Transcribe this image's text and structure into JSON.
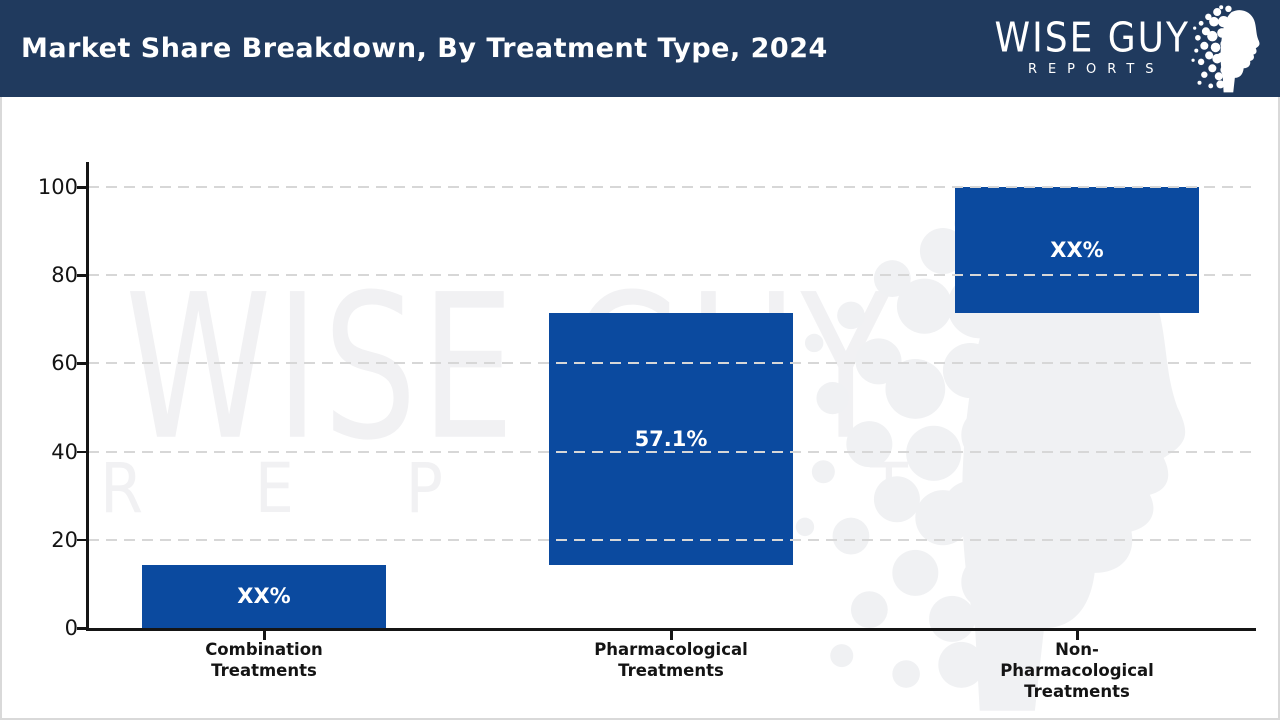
{
  "header": {
    "title": "Market Share Breakdown, By Treatment Type, 2024",
    "logo": {
      "wordmark": "WISE GUY",
      "subtext": "REPORTS"
    },
    "bg_color": "#203a5e"
  },
  "watermark": {
    "wordmark": "WISE GUY",
    "subtext": "R E P O R T S"
  },
  "chart_data": {
    "type": "bar",
    "subtype": "waterfall",
    "title": "Market Share Breakdown, By Treatment Type, 2024",
    "categories": [
      "Combination\nTreatments",
      "Pharmacological\nTreatments",
      "Non-\nPharmacological\nTreatments"
    ],
    "series": [
      {
        "name": "Combination Treatments",
        "start": 0,
        "end": 14.3,
        "label": "XX%"
      },
      {
        "name": "Pharmacological Treatments",
        "start": 14.3,
        "end": 71.4,
        "label": "57.1%"
      },
      {
        "name": "Non-Pharmacological Treatments",
        "start": 71.4,
        "end": 100,
        "label": "XX%"
      }
    ],
    "y_ticks": [
      0,
      20,
      40,
      60,
      80,
      100
    ],
    "ylim": [
      0,
      105
    ],
    "xlabel": "",
    "ylabel": "",
    "grid": {
      "axis": "y",
      "style": "dashed",
      "color": "#d7d7d7"
    },
    "legend": null,
    "bar_color": "#0b4a9f",
    "bar_label_color": "#ffffff"
  }
}
